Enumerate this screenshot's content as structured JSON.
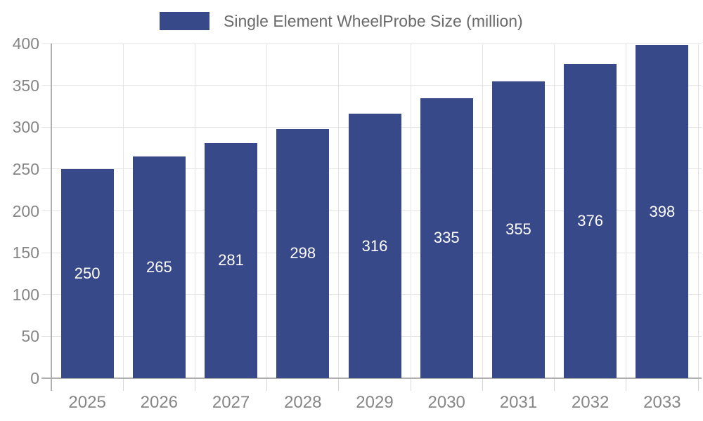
{
  "legend": {
    "label": "Single Element WheelProbe Size (million)"
  },
  "colors": {
    "bar": "#38498A",
    "value_label": "#ffffff",
    "legend_text": "#6a6a6a",
    "tick_label": "#868686",
    "gridline": "#e4e4e4",
    "axis_line": "#b0b0b0",
    "below_axis_tick": "#d6d6d6",
    "background": "#ffffff"
  },
  "chart_data": {
    "type": "bar",
    "title": "",
    "xlabel": "",
    "ylabel": "",
    "series_name": "Single Element WheelProbe Size (million)",
    "categories": [
      "2025",
      "2026",
      "2027",
      "2028",
      "2029",
      "2030",
      "2031",
      "2032",
      "2033"
    ],
    "values": [
      250,
      265,
      281,
      298,
      316,
      335,
      355,
      376,
      398
    ],
    "bar_labels": [
      "250",
      "265",
      "281",
      "298",
      "316",
      "335",
      "355",
      "376",
      "398"
    ],
    "ylim": [
      0,
      400
    ],
    "yticks": [
      0,
      50,
      100,
      150,
      200,
      250,
      300,
      350,
      400
    ],
    "grid": true,
    "legend_position": "top-center"
  }
}
